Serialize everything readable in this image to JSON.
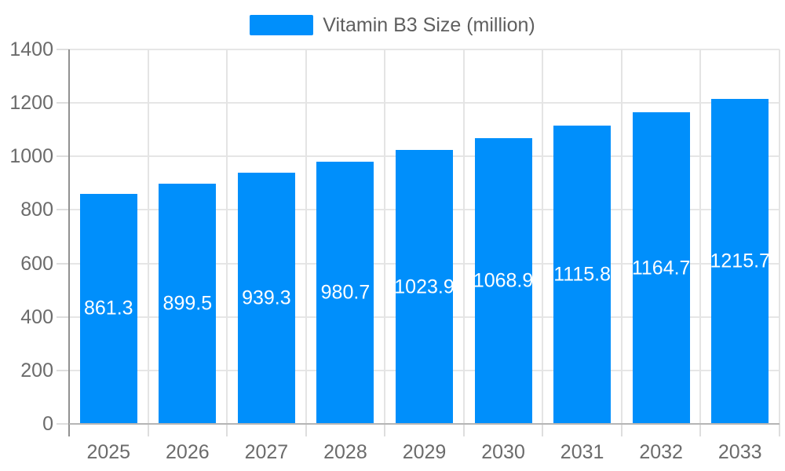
{
  "chart_data": {
    "type": "bar",
    "legend": "Vitamin B3 Size (million)",
    "legend_position": "top",
    "categories": [
      "2025",
      "2026",
      "2027",
      "2028",
      "2029",
      "2030",
      "2031",
      "2032",
      "2033"
    ],
    "values": [
      861.3,
      899.5,
      939.3,
      980.7,
      1023.9,
      1068.9,
      1115.8,
      1164.7,
      1215.7
    ],
    "title": "",
    "xlabel": "",
    "ylabel": "",
    "ylim": [
      0,
      1400
    ],
    "yticks": [
      0,
      200,
      400,
      600,
      800,
      1000,
      1200,
      1400
    ],
    "grid": true,
    "colors": {
      "bar": "#008FFB",
      "hgrid": "#e6e6e6",
      "vgrid": "#e4e4e4",
      "tick": "#dedede",
      "y_axis": "#919191",
      "x_axis": "#b5b5b5",
      "axis_label": "#6b6b6b",
      "legend_text": "#5f5f5f",
      "bar_label": "#ffffff"
    }
  }
}
